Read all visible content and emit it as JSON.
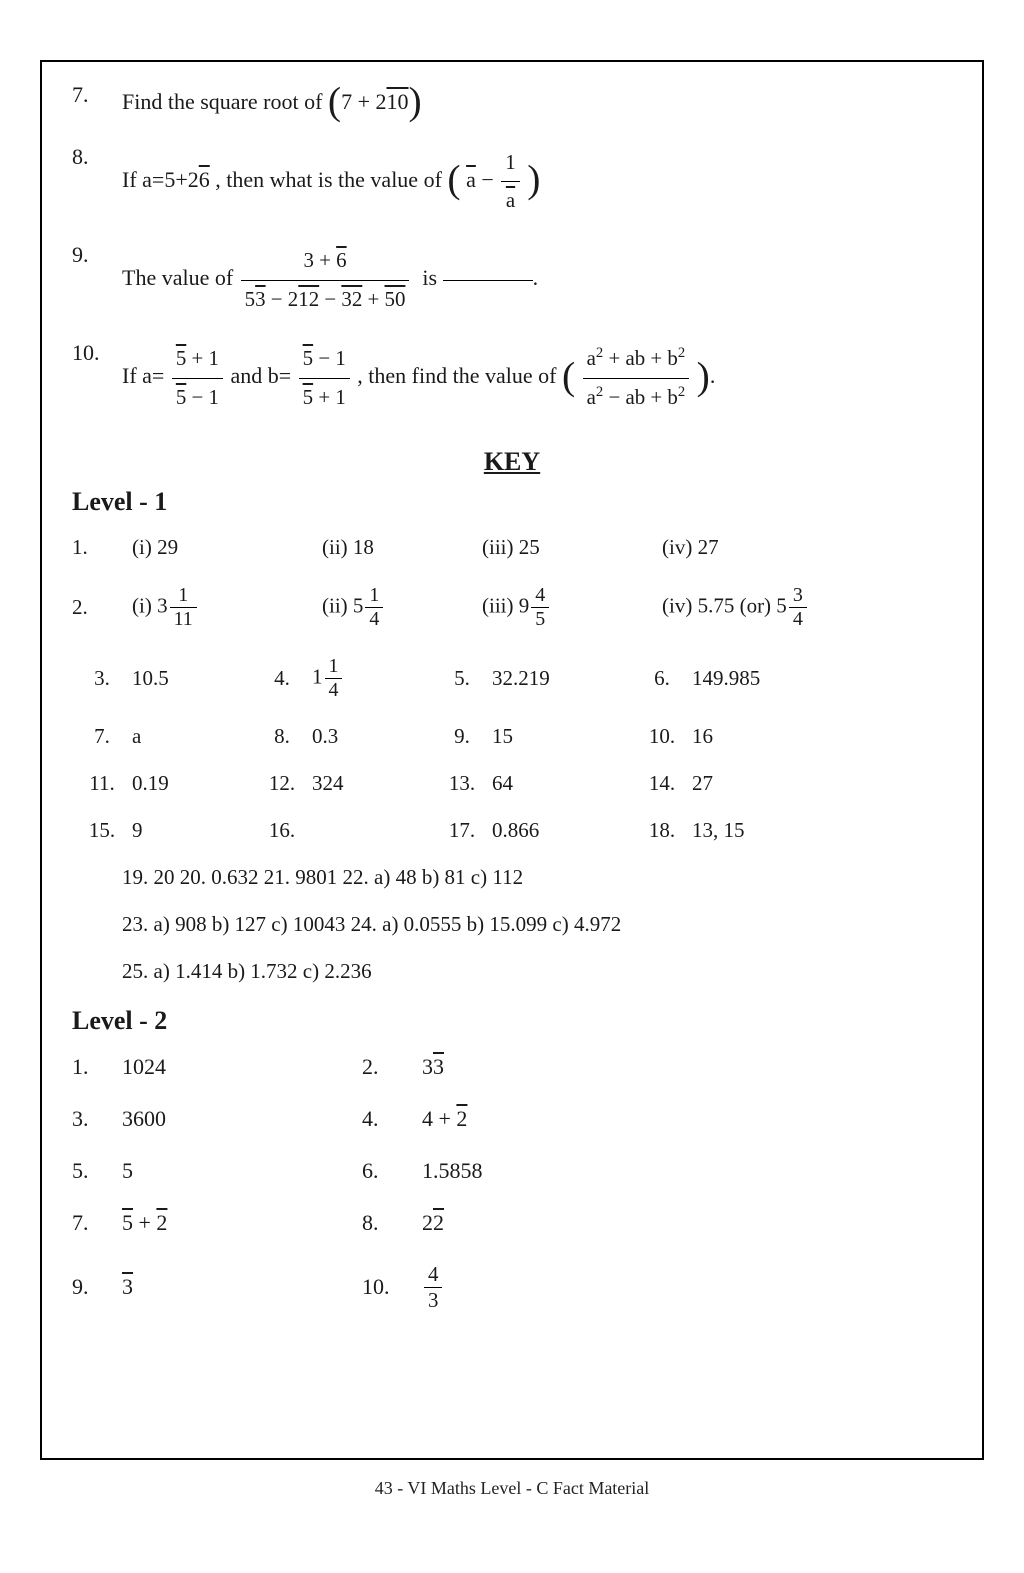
{
  "questions": {
    "q7": {
      "num": "7.",
      "text_a": "Find the square root of ",
      "expr": "(7 + 2√10)"
    },
    "q8": {
      "num": "8.",
      "text_a": "If a=5+2√6 , then what is the value of ",
      "paren_expr": "√a − 1/√a"
    },
    "q9": {
      "num": "9.",
      "text_a": "The value of ",
      "frac_num": "3 + √6",
      "frac_den": "5√3 − 2√12 − √32 + √50",
      "is": " is "
    },
    "q10": {
      "num": "10.",
      "text_a": "If a=",
      "a_num": "√5 + 1",
      "a_den": "√5 − 1",
      "and": " and b=",
      "b_num": "√5 − 1",
      "b_den": "√5 + 1",
      "then": ", then find the value of ",
      "p_num": "a² + ab + b²",
      "p_den": "a² − ab + b²",
      "dot": "."
    }
  },
  "key_heading": "KEY",
  "level1_heading": "Level - 1",
  "level1": {
    "r1": {
      "n": "1.",
      "i": "(i) 29",
      "ii": "(ii) 18",
      "iii": "(iii) 25",
      "iv": "(iv) 27"
    },
    "r2": {
      "n": "2.",
      "i_a": "(i) 3",
      "i_num": "1",
      "i_den": "11",
      "ii_a": "(ii) 5",
      "ii_num": "1",
      "ii_den": "4",
      "iii_a": "(iii) 9",
      "iii_num": "4",
      "iii_den": "5",
      "iv_a": "(iv) 5.75 (or) 5",
      "iv_num": "3",
      "iv_den": "4"
    },
    "grid": [
      [
        "3.",
        "10.5",
        "4.",
        "1¼",
        "5.",
        "32.219",
        "6.",
        "149.985"
      ],
      [
        "7.",
        "a",
        "8.",
        "0.3",
        "9.",
        "15",
        "10.",
        "16"
      ],
      [
        "11.",
        "0.19",
        "12.",
        "324",
        "13.",
        "64",
        "14.",
        "27"
      ],
      [
        "15.",
        "9",
        "16.",
        "",
        "17.",
        "0.866",
        "18.",
        "13, 15"
      ]
    ],
    "r19": "19.   20    20.   0.632          21.   9801          22.   a) 48   b) 81   c) 112",
    "r23": "23.   a) 908  b) 127  c) 10043              24.   a) 0.0555  b) 15.099  c) 4.972",
    "r25": "25.   a) 1.414        b) 1.732       c) 2.236"
  },
  "level2_heading": "Level - 2",
  "level2": [
    [
      "1.",
      "1024",
      "2.",
      "3√3"
    ],
    [
      "3.",
      "3600",
      "4.",
      "4 + √2"
    ],
    [
      "5.",
      "5",
      "6.",
      "1.5858"
    ],
    [
      "7.",
      "√5 + √2",
      "8.",
      "2√2"
    ],
    [
      "9.",
      "√3",
      "10.",
      "4/3"
    ]
  ],
  "footer": "43 - VI Maths Level - C Fact Material"
}
